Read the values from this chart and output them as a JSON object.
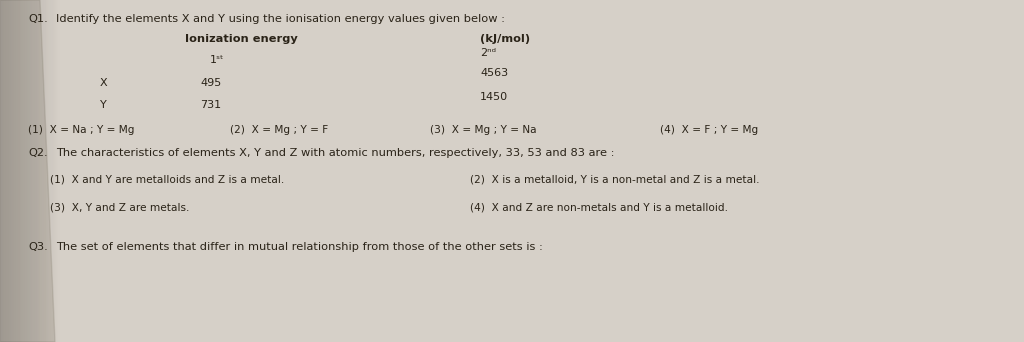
{
  "bg_color": "#d6d0c8",
  "bg_color_right": "#c8c2ba",
  "shadow_color": "#a0998e",
  "text_color": "#2a2318",
  "q1_num": "Q1.",
  "q1_text": "Identify the elements X and Y using the ionisation energy values given below :",
  "col1_header": "Ionization energy",
  "col2_header": "(kJ/mol)",
  "sub1": "1ˢᵗ",
  "sub2": "2ⁿᵈ",
  "row_x": "X",
  "row_x_ie1": "495",
  "row_x_ie2": "4563",
  "row_y": "Y",
  "row_y_ie1": "731",
  "row_y_ie2": "1450",
  "opts_q1": [
    "(1)  X = Na ; Y = Mg",
    "(2)  X = Mg ; Y = F",
    "(3)  X = Mg ; Y = Na",
    "(4)  X = F ; Y = Mg"
  ],
  "q2_num": "Q2.",
  "q2_text": "The characteristics of elements X, Y and Z with atomic numbers, respectively, 33, 53 and 83 are :",
  "opts_q2_L": [
    "(1)  X and Y are metalloids and Z is a metal.",
    "(3)  X, Y and Z are metals."
  ],
  "opts_q2_R": [
    "(2)  X is a metalloid, Y is a non-metal and Z is a metal.",
    "(4)  X and Z are non-metals and Y is a metalloid."
  ],
  "q3_num": "Q3.",
  "q3_text": "The set of elements that differ in mutual relationship from those of the other sets is :"
}
